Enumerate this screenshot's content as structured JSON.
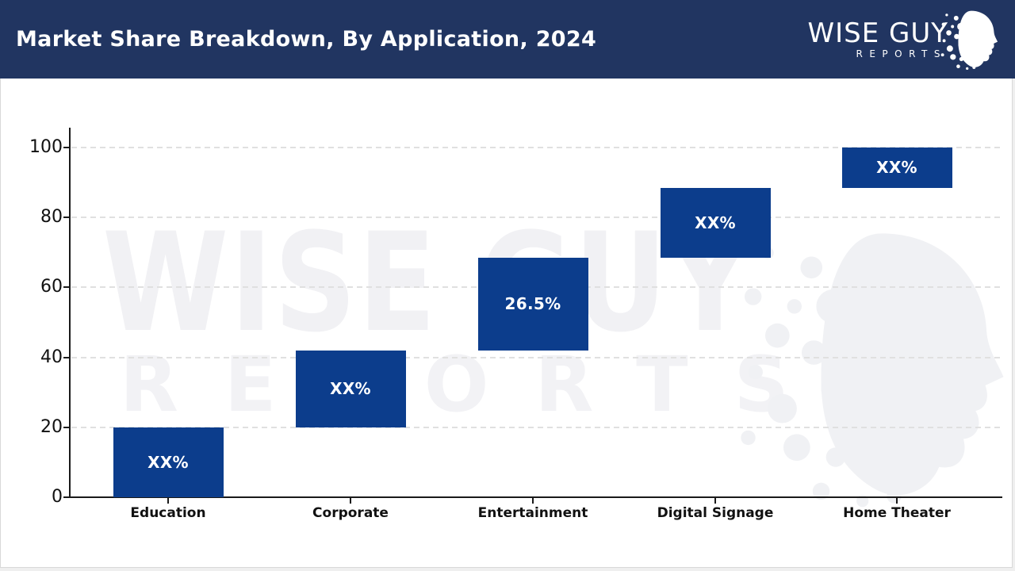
{
  "header": {
    "title": "Market Share Breakdown, By Application, 2024",
    "logo": {
      "line1": "WISE GUY",
      "line2": "REPORTS"
    }
  },
  "watermark": {
    "line1": "WISE GUY",
    "line2": "REPORTS"
  },
  "colors": {
    "header_bg": "#213561",
    "bar_fill": "#0c3d8c",
    "bar_label": "#ffffff",
    "axis": "#1a1a1a",
    "gridline": "#e0e0e0",
    "watermark": "#f1f1f4",
    "card_border": "#d9d9d9"
  },
  "chart_data": {
    "type": "bar",
    "subtype": "waterfall-floating-bars",
    "title": "Market Share Breakdown, By Application, 2024",
    "categories": [
      "Education",
      "Corporate",
      "Entertainment",
      "Digital Signage",
      "Home Theater"
    ],
    "segments": [
      {
        "category": "Education",
        "start": 0,
        "end": 20,
        "value_label": "XX%"
      },
      {
        "category": "Corporate",
        "start": 20,
        "end": 42,
        "value_label": "XX%"
      },
      {
        "category": "Entertainment",
        "start": 42,
        "end": 68.5,
        "value_label": "26.5%"
      },
      {
        "category": "Digital Signage",
        "start": 68.5,
        "end": 88.5,
        "value_label": "XX%"
      },
      {
        "category": "Home Theater",
        "start": 88.5,
        "end": 100,
        "value_label": "XX%"
      }
    ],
    "xlabel": "",
    "ylabel": "",
    "yticks": [
      0,
      20,
      40,
      60,
      80,
      100
    ],
    "ylim": [
      0,
      105
    ],
    "grid": "horizontal-dashed",
    "legend": "none"
  }
}
